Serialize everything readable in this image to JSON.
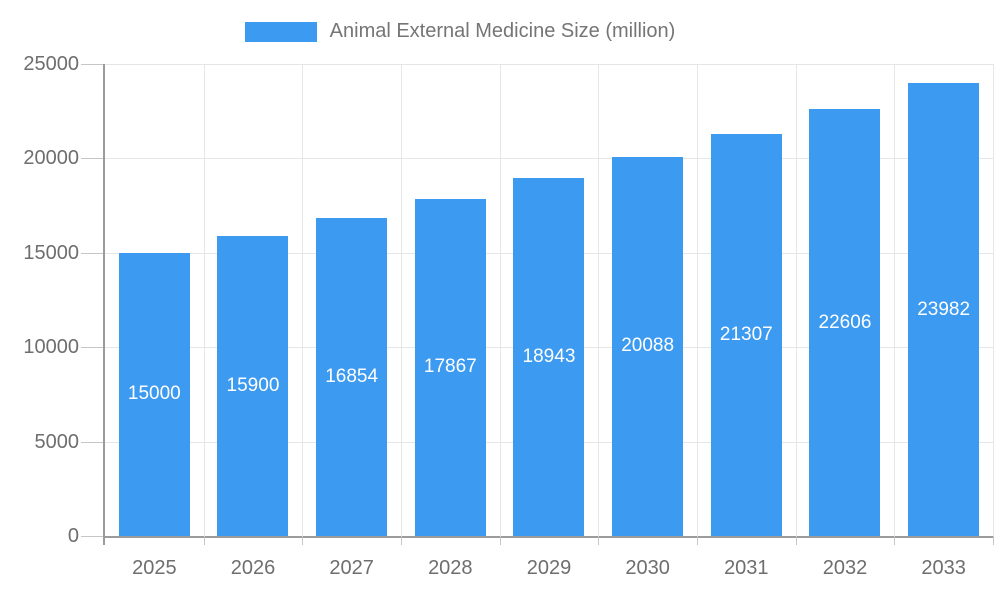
{
  "legend": {
    "label": "Animal External Medicine Size (million)"
  },
  "colors": {
    "bar": "#3C9AF0",
    "axis_line": "#9B9B9B",
    "gridline": "#E6E6E6",
    "tick": "#C6C6C6",
    "axis_text": "#6E6E6E",
    "legend_text": "#757575",
    "value_text": "#FFFFFF",
    "background": "#FFFFFF"
  },
  "chart_data": {
    "type": "bar",
    "title": "Animal External Medicine Size (million)",
    "categories": [
      "2025",
      "2026",
      "2027",
      "2028",
      "2029",
      "2030",
      "2031",
      "2032",
      "2033"
    ],
    "values": [
      15000,
      15900,
      16854,
      17867,
      18943,
      20088,
      21307,
      22606,
      23982
    ],
    "xlabel": "",
    "ylabel": "",
    "ylim": [
      0,
      25000
    ],
    "yticks": [
      0,
      5000,
      10000,
      15000,
      20000,
      25000
    ],
    "grid": true,
    "legend_position": "top-center",
    "value_labels_position": "inside-middle",
    "bar_color": "#3C9AF0"
  }
}
